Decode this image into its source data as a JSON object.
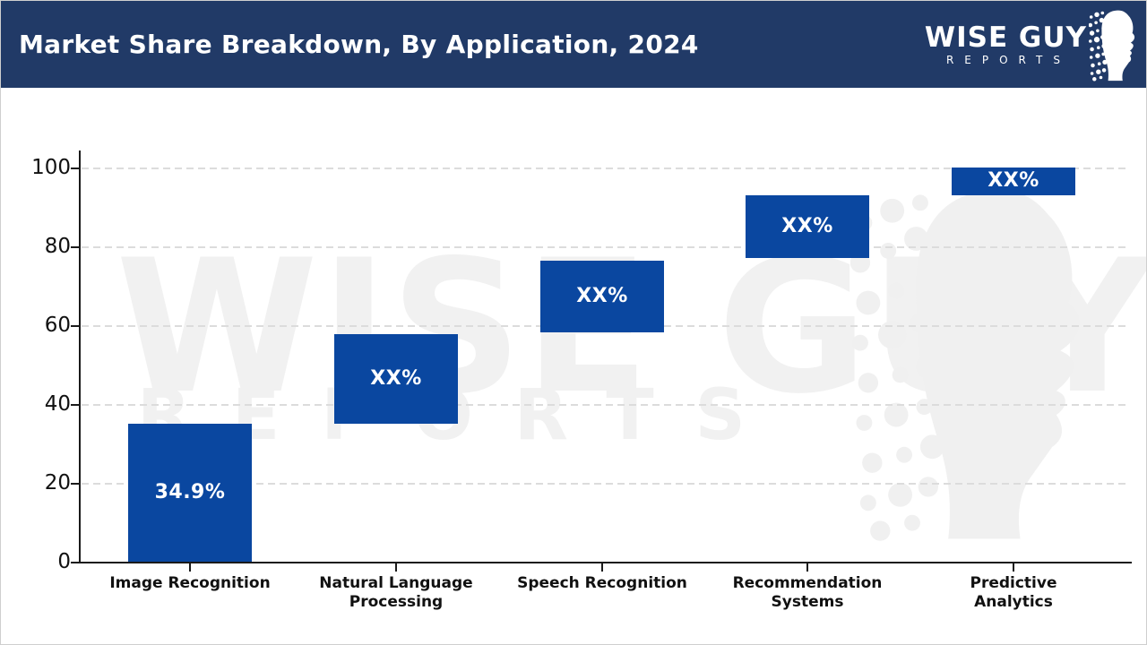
{
  "header": {
    "title": "Market Share Breakdown, By Application, 2024",
    "bg_color": "#213a67",
    "logo": {
      "name": "WISE GUY",
      "subname": "REPORTS"
    }
  },
  "watermark": {
    "line1": "WISE GUY",
    "line2": "REPORTS"
  },
  "chart_data": {
    "type": "bar",
    "subtype": "floating-waterfall",
    "title": "Market Share Breakdown, By Application, 2024",
    "categories": [
      "Image Recognition",
      "Natural Language Processing",
      "Speech Recognition",
      "Recommendation Systems",
      "Predictive Analytics"
    ],
    "category_lines": [
      [
        "Image Recognition"
      ],
      [
        "Natural Language",
        "Processing"
      ],
      [
        "Speech Recognition"
      ],
      [
        "Recommendation",
        "Systems"
      ],
      [
        "Predictive",
        "Analytics"
      ]
    ],
    "series": [
      {
        "name": "Market share (%)",
        "segments": [
          {
            "category": "Image Recognition",
            "from": 0,
            "to": 34.9,
            "label": "34.9%"
          },
          {
            "category": "Natural Language Processing",
            "from": 34.9,
            "to": 57.7,
            "label": "XX%"
          },
          {
            "category": "Speech Recognition",
            "from": 58.1,
            "to": 76.4,
            "label": "XX%"
          },
          {
            "category": "Recommendation Systems",
            "from": 77.0,
            "to": 93.0,
            "label": "XX%"
          },
          {
            "category": "Predictive Analytics",
            "from": 93.0,
            "to": 100.0,
            "label": "XX%"
          }
        ]
      }
    ],
    "ylim": [
      0,
      100
    ],
    "yticks": [
      0,
      20,
      40,
      60,
      80,
      100
    ],
    "xlabel": "",
    "ylabel": "",
    "grid": "horizontal-dashed",
    "legend": "none",
    "bar_color": "#0a47a0",
    "bar_label_color": "#ffffff",
    "axis_color": "#1a1a1a",
    "gridline_color": "#dcdcdc"
  }
}
